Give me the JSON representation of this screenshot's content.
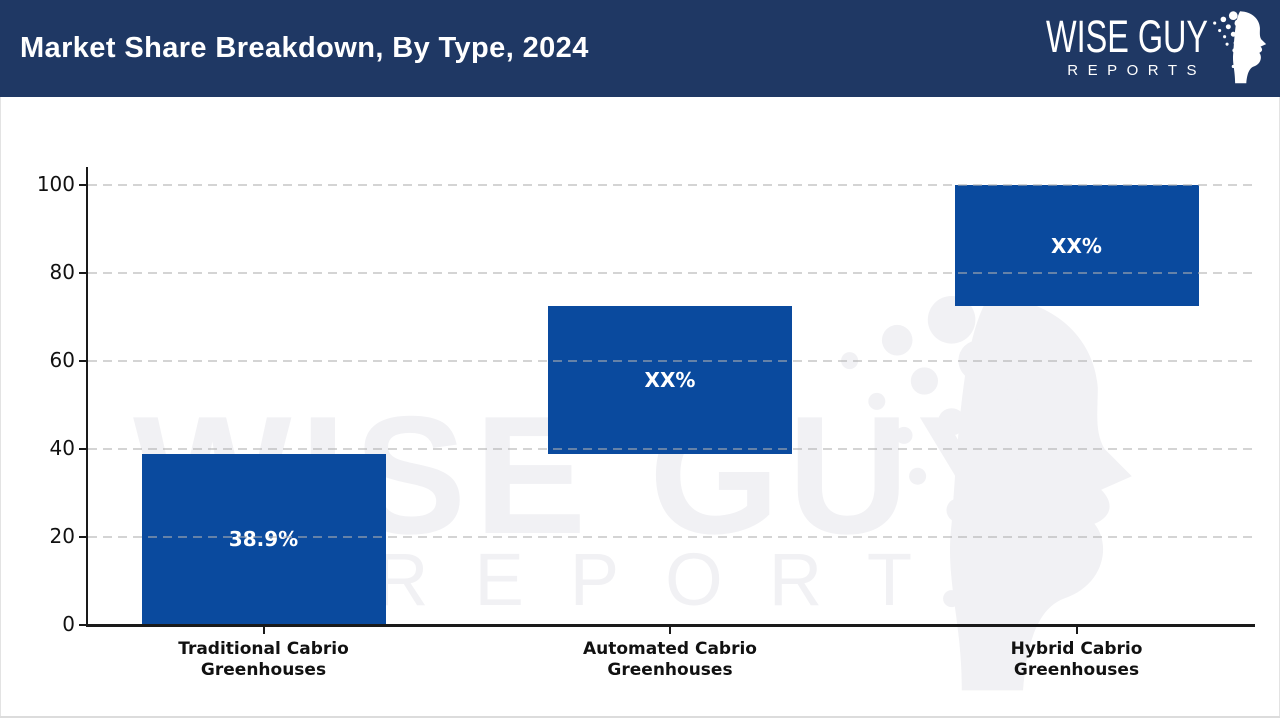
{
  "header": {
    "title": "Market Share Breakdown, By Type, 2024",
    "bg_color": "#1f3864",
    "logo": {
      "line1": "WISE GUY",
      "line2": "REPORTS"
    }
  },
  "watermark": {
    "line1": "WISE GUY",
    "line2": "REPORTS"
  },
  "chart_data": {
    "type": "bar",
    "subtype": "floating-waterfall",
    "title": "Market Share Breakdown, By Type, 2024",
    "categories": [
      "Traditional Cabrio Greenhouses",
      "Automated Cabrio Greenhouses",
      "Hybrid Cabrio Greenhouses"
    ],
    "series": [
      {
        "name": "Market Share",
        "segments": [
          {
            "start": 0,
            "end": 38.9
          },
          {
            "start": 38.9,
            "end": 72.5
          },
          {
            "start": 72.5,
            "end": 100
          }
        ]
      }
    ],
    "bar_labels": [
      "38.9%",
      "XX%",
      "XX%"
    ],
    "xlabel": "",
    "ylabel": "",
    "ylim": [
      0,
      100
    ],
    "yticks": [
      0,
      20,
      40,
      60,
      80,
      100
    ],
    "bar_color": "#0a4a9e",
    "label_color": "#ffffff",
    "grid": "dashed-horizontal",
    "legend": "none"
  }
}
